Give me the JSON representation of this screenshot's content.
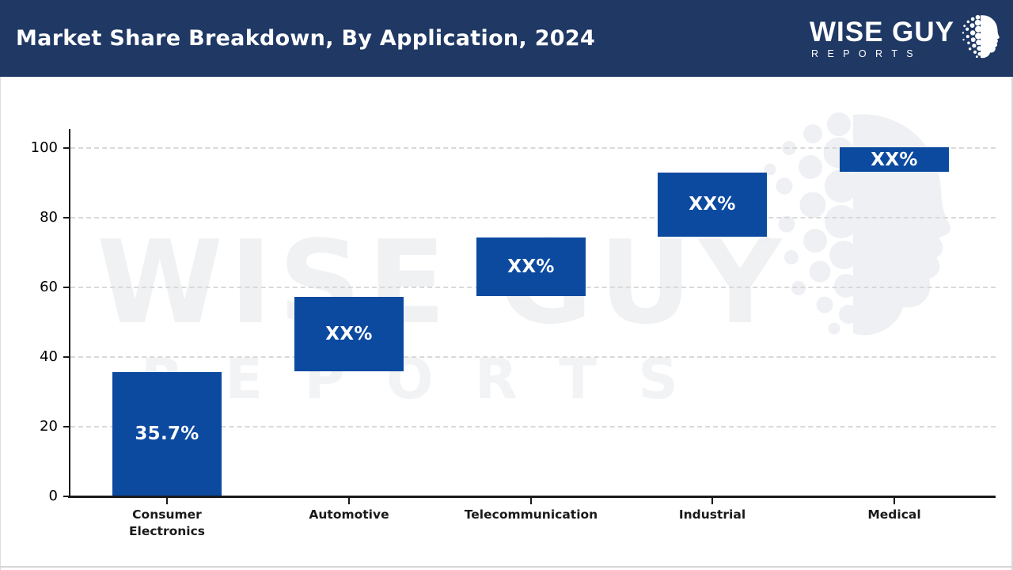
{
  "header": {
    "title": "Market Share Breakdown, By Application, 2024",
    "logo": {
      "line1": "WISE GUY",
      "line2": "R E P O R T S"
    }
  },
  "watermark": {
    "line1": "WISE GUY",
    "line2": "R E P O R T S"
  },
  "chart_data": {
    "type": "bar",
    "subtype": "floating-waterfall",
    "title": "Market Share Breakdown, By Application, 2024",
    "categories": [
      "Consumer Electronics",
      "Automotive",
      "Telecommunication",
      "Industrial",
      "Medical"
    ],
    "x_tick_labels": [
      "Consumer\nElectronics",
      "Automotive",
      "Telecommunication",
      "Industrial",
      "Medical"
    ],
    "segments": [
      {
        "category": "Consumer Electronics",
        "start": 0,
        "end": 35.7,
        "label": "35.7%"
      },
      {
        "category": "Automotive",
        "start": 35.9,
        "end": 57.3,
        "label": "XX%"
      },
      {
        "category": "Telecommunication",
        "start": 57.5,
        "end": 74.3,
        "label": "XX%"
      },
      {
        "category": "Industrial",
        "start": 74.5,
        "end": 93.0,
        "label": "XX%"
      },
      {
        "category": "Medical",
        "start": 93.2,
        "end": 100.2,
        "label": "XX%"
      }
    ],
    "y_ticks": [
      0,
      20,
      40,
      60,
      80,
      100
    ],
    "ylim": [
      0,
      105
    ],
    "xlabel": "",
    "ylabel": "",
    "grid": "horizontal-dashed",
    "legend": "none",
    "colors": {
      "bar": "#0c4aa0",
      "bar_label": "#ffffff",
      "header_bg": "#1f3864",
      "axis": "#1a1a1a",
      "gridline": "#d9d9d9",
      "watermark": "#f0f1f3"
    }
  }
}
